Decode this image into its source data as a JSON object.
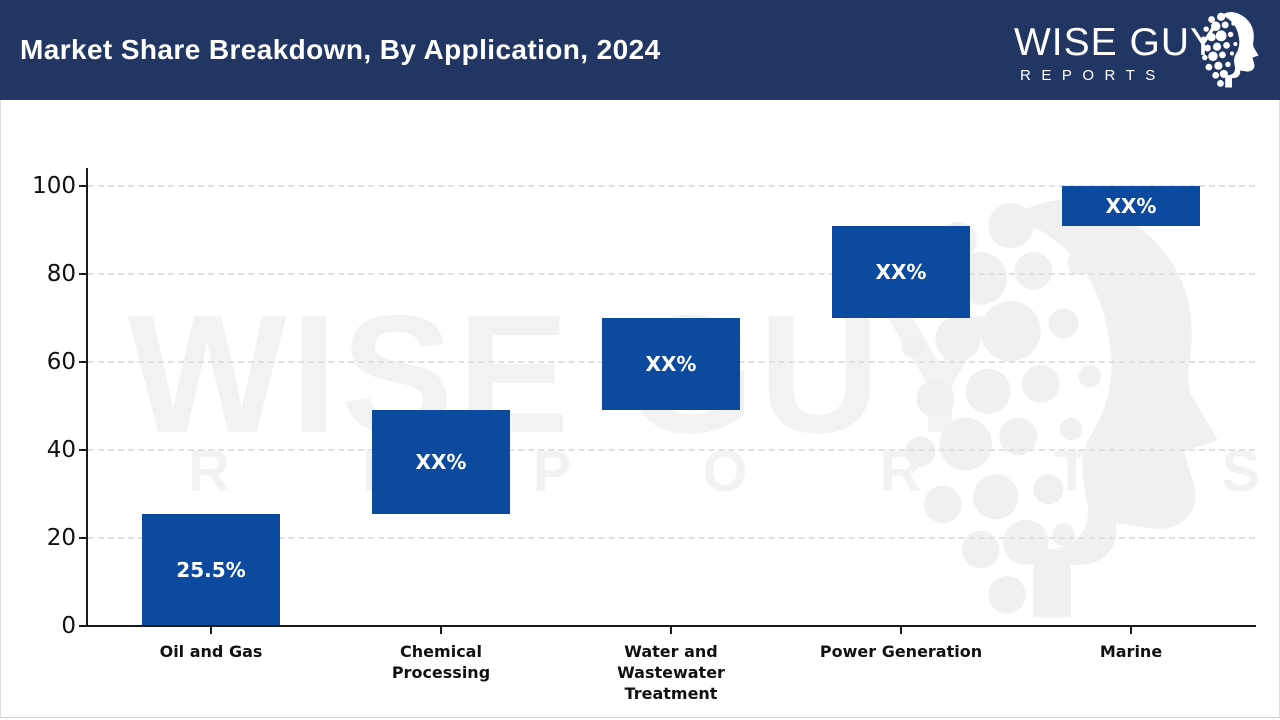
{
  "header": {
    "title": "Market Share Breakdown, By Application, 2024",
    "brand": {
      "line1": "WISE GUY",
      "line2": "REPORTS"
    }
  },
  "watermark": {
    "line1": "WISE GUY",
    "line2": "R E P O R T S"
  },
  "colors": {
    "header_bg": "#223663",
    "bar": "#0b4a9e",
    "bar_label": "#ffffff",
    "gridline": "#e0e0e0",
    "axis": "#1a1a1a",
    "watermark": "#f2f2f2"
  },
  "chart_data": {
    "type": "bar",
    "variant": "waterfall",
    "title": "Market Share Breakdown, By Application, 2024",
    "categories": [
      "Oil and Gas",
      "Chemical Processing",
      "Water and Wastewater Treatment",
      "Power Generation",
      "Marine"
    ],
    "category_label_lines": [
      [
        "Oil and Gas"
      ],
      [
        "Chemical",
        "Processing"
      ],
      [
        "Water and",
        "Wastewater",
        "Treatment"
      ],
      [
        "Power Generation"
      ],
      [
        "Marine"
      ]
    ],
    "segments": [
      {
        "category": "Oil and Gas",
        "start": 0,
        "end": 25.5,
        "value": 25.5,
        "label": "25.5%"
      },
      {
        "category": "Chemical Processing",
        "start": 25.5,
        "end": 49,
        "value": 23.5,
        "label": "XX%"
      },
      {
        "category": "Water and Wastewater Treatment",
        "start": 49,
        "end": 70,
        "value": 21,
        "label": "XX%"
      },
      {
        "category": "Power Generation",
        "start": 70,
        "end": 91,
        "value": 21,
        "label": "XX%"
      },
      {
        "category": "Marine",
        "start": 91,
        "end": 100,
        "value": 9,
        "label": "XX%"
      }
    ],
    "xlabel": "",
    "ylabel": "",
    "ylim": [
      0,
      100
    ],
    "yticks": [
      0,
      20,
      40,
      60,
      80,
      100
    ],
    "gridlines": "horizontal-dashed",
    "legend": "none"
  }
}
